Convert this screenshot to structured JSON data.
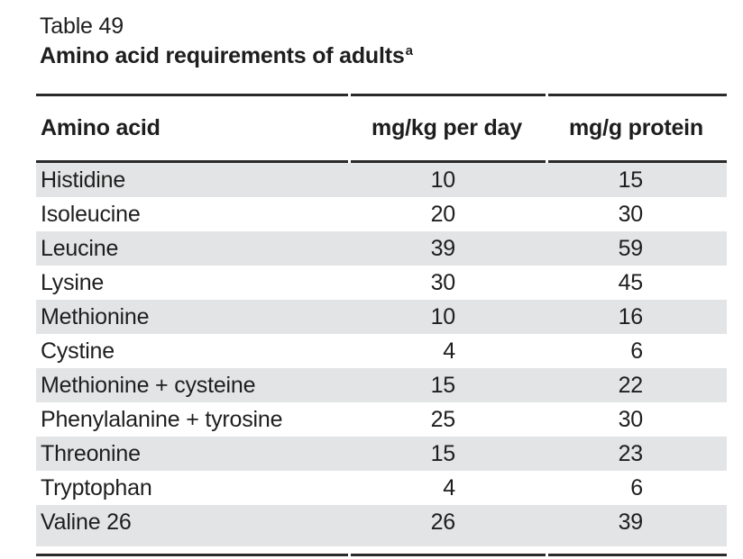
{
  "caption": {
    "label": "Table 49",
    "title": "Amino acid requirements of adults",
    "footnote_marker": "a"
  },
  "table": {
    "columns": [
      {
        "label": "Amino acid"
      },
      {
        "label": "mg/kg per day"
      },
      {
        "label": "mg/g protein"
      }
    ],
    "rows": [
      {
        "name": "Histidine",
        "mg_kg": "10",
        "mg_g": "15"
      },
      {
        "name": "Isoleucine",
        "mg_kg": "20",
        "mg_g": "30"
      },
      {
        "name": "Leucine",
        "mg_kg": "39",
        "mg_g": "59"
      },
      {
        "name": "Lysine",
        "mg_kg": "30",
        "mg_g": "45"
      },
      {
        "name": "Methionine",
        "mg_kg": "10",
        "mg_g": "16"
      },
      {
        "name": "Cystine",
        "mg_kg": "4",
        "mg_g": "6"
      },
      {
        "name": "Methionine + cysteine",
        "mg_kg": "15",
        "mg_g": "22"
      },
      {
        "name": "Phenylalanine + tyrosine",
        "mg_kg": "25",
        "mg_g": "30"
      },
      {
        "name": "Threonine",
        "mg_kg": "15",
        "mg_g": "23"
      },
      {
        "name": "Tryptophan",
        "mg_kg": "4",
        "mg_g": "6"
      },
      {
        "name": "Valine 26",
        "mg_kg": "26",
        "mg_g": "39"
      }
    ]
  },
  "colors": {
    "stripe": "#e3e4e5",
    "rule": "#2a2a2a",
    "text": "#1e1e1e",
    "background": "#ffffff"
  }
}
